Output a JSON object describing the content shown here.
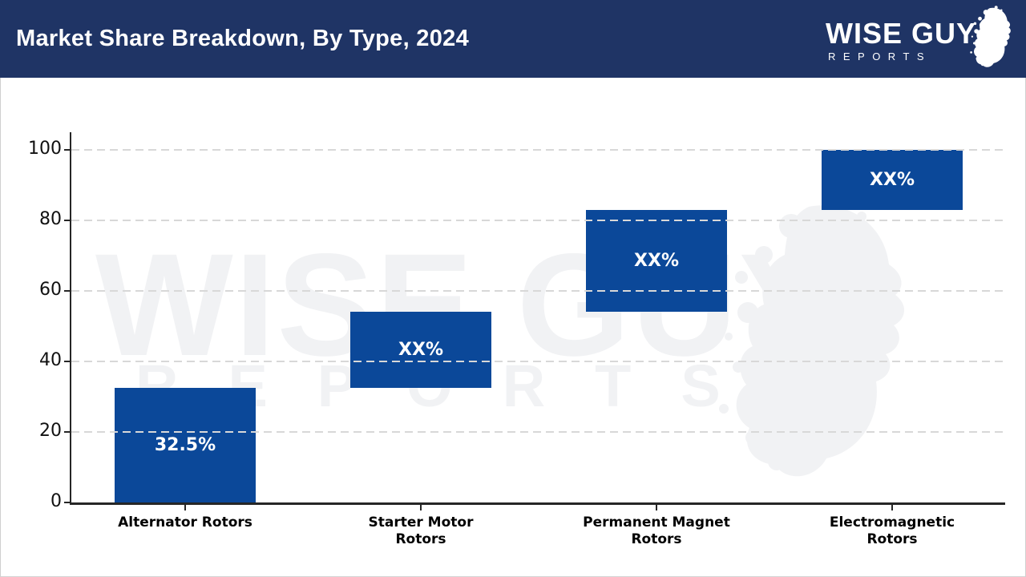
{
  "header": {
    "title": "Market Share Breakdown, By Type, 2024",
    "bg_color": "#1f3465",
    "logo": {
      "wordmark": "WISE GUY",
      "subtext": "REPORTS"
    }
  },
  "watermark": {
    "wordmark": "WISE GUY",
    "subtext": "REPORTS"
  },
  "chart_data": {
    "type": "bar",
    "subtype": "floating_segment_waterfall",
    "title": "Market Share Breakdown, By Type, 2024",
    "categories": [
      "Alternator Rotors",
      "Starter Motor\nRotors",
      "Permanent Magnet\nRotors",
      "Electromagnetic\nRotors"
    ],
    "series": [
      {
        "name": "Market share (%)",
        "segments": [
          {
            "start": 0,
            "end": 32.5,
            "label": "32.5%"
          },
          {
            "start": 32.5,
            "end": 54,
            "label": "XX%"
          },
          {
            "start": 54,
            "end": 83,
            "label": "XX%"
          },
          {
            "start": 83,
            "end": 100,
            "label": "XX%"
          }
        ]
      }
    ],
    "xlabel": "",
    "ylabel": "",
    "ylim": [
      0,
      105
    ],
    "yticks": [
      0,
      20,
      40,
      60,
      80,
      100
    ],
    "grid": "horizontal_dashed",
    "legend": "none",
    "bar_color": "#0b4899",
    "bar_label_color": "#ffffff",
    "axis_color": "#262626",
    "gridline_color": "#d8d8d8"
  }
}
